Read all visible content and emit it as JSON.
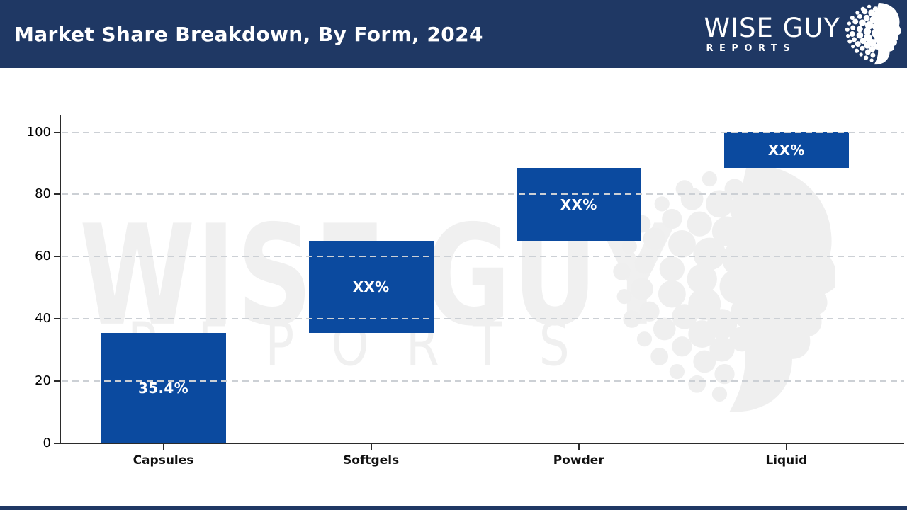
{
  "header": {
    "title": "Market Share Breakdown, By Form, 2024",
    "logo": {
      "line1": "WISE GUY",
      "line2": "REPORTS"
    },
    "bg_color": "#1f3864"
  },
  "watermark": {
    "line1": "WISE GUY",
    "line2": "REPORTS",
    "head_icon": "dotted-head-profile"
  },
  "colors": {
    "header_navy": "#1f3864",
    "bar_blue": "#0b4a9f",
    "bar_label_white": "#ffffff",
    "watermark_gray": "#f0f0f0"
  },
  "chart_data": {
    "type": "bar",
    "subtype": "waterfall",
    "title": "Market Share Breakdown, By Form, 2024",
    "categories": [
      "Capsules",
      "Softgels",
      "Powder",
      "Liquid"
    ],
    "series": [
      {
        "name": "Market Share (%)",
        "segments": [
          {
            "category": "Capsules",
            "label": "35.4%",
            "start": 0,
            "end": 35.4
          },
          {
            "category": "Softgels",
            "label": "XX%",
            "start": 35.4,
            "end": 65
          },
          {
            "category": "Powder",
            "label": "XX%",
            "start": 65,
            "end": 88.5
          },
          {
            "category": "Liquid",
            "label": "XX%",
            "start": 88.5,
            "end": 100
          }
        ]
      }
    ],
    "ylim": [
      0,
      100
    ],
    "yticks": [
      0,
      20,
      40,
      60,
      80,
      100
    ],
    "xlabel": "",
    "ylabel": "",
    "grid": "horizontal-dashed",
    "legend": "none",
    "bar_color": "#0b4a9f",
    "value_label_color": "#ffffff"
  }
}
